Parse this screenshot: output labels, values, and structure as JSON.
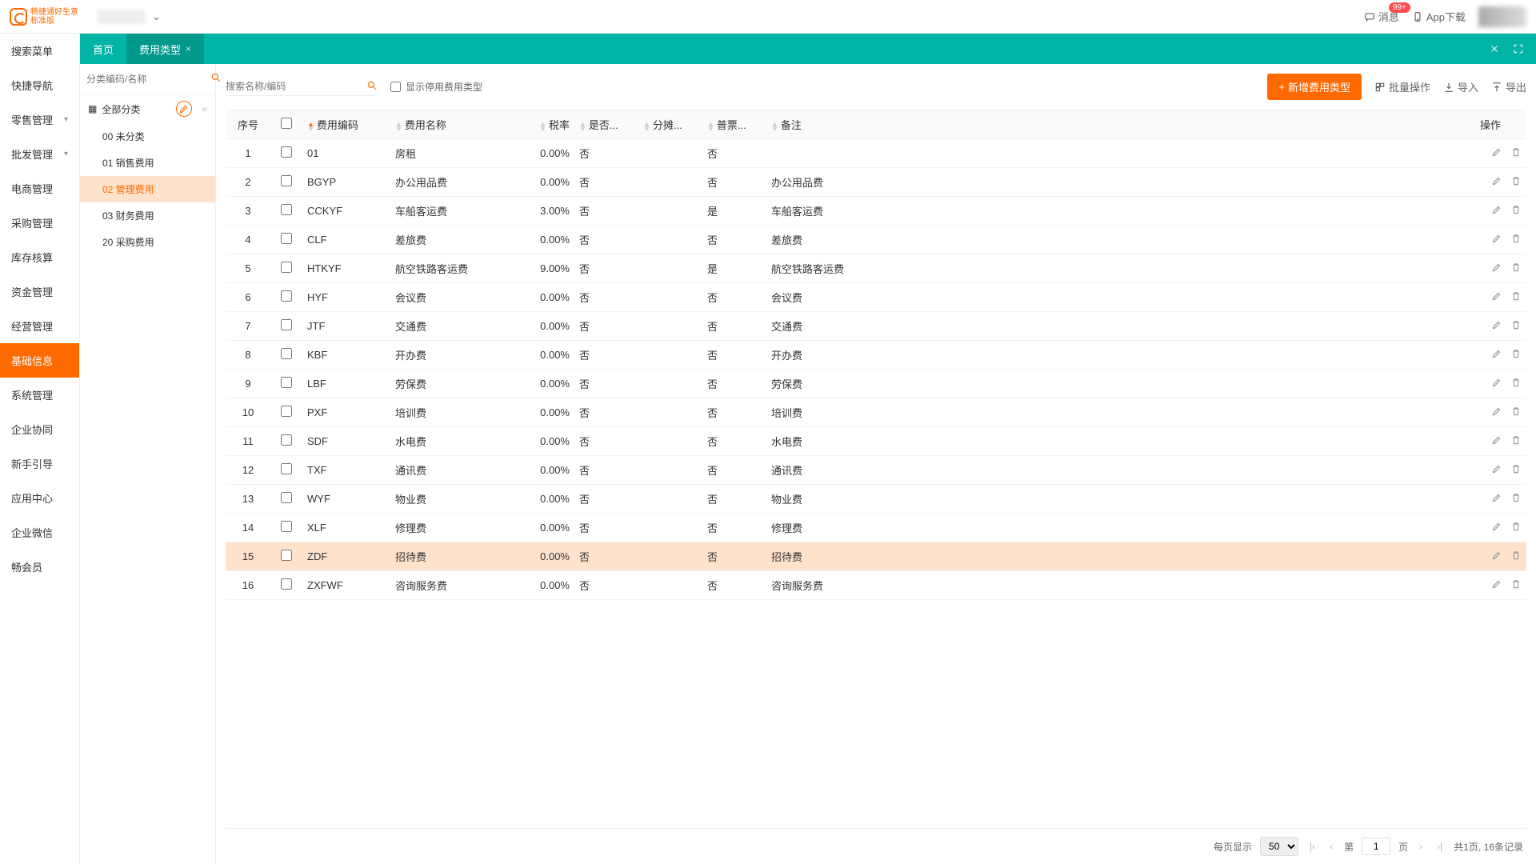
{
  "logo": {
    "line1": "畅捷通好生意",
    "line2": "标准版"
  },
  "topbar": {
    "message": "消息",
    "badge": "99+",
    "appDownload": "App下载"
  },
  "sidebar": {
    "items": [
      {
        "label": "搜索菜单",
        "expandable": false
      },
      {
        "label": "快捷导航",
        "expandable": false
      },
      {
        "label": "零售管理",
        "expandable": true
      },
      {
        "label": "批发管理",
        "expandable": true
      },
      {
        "label": "电商管理",
        "expandable": false
      },
      {
        "label": "采购管理",
        "expandable": false
      },
      {
        "label": "库存核算",
        "expandable": false
      },
      {
        "label": "资金管理",
        "expandable": false
      },
      {
        "label": "经营管理",
        "expandable": false
      },
      {
        "label": "基础信息",
        "expandable": false,
        "active": true
      },
      {
        "label": "系统管理",
        "expandable": false
      },
      {
        "label": "企业协同",
        "expandable": false
      },
      {
        "label": "新手引导",
        "expandable": false
      },
      {
        "label": "应用中心",
        "expandable": false
      },
      {
        "label": "企业微信",
        "expandable": false
      },
      {
        "label": "畅会员",
        "expandable": false
      }
    ]
  },
  "tabs": [
    {
      "label": "首页",
      "closable": false,
      "active": false
    },
    {
      "label": "费用类型",
      "closable": true,
      "active": true
    }
  ],
  "catSearch": {
    "placeholder": "分类编码/名称"
  },
  "catHeader": {
    "all": "全部分类"
  },
  "categories": [
    {
      "label": "00 未分类"
    },
    {
      "label": "01 销售费用"
    },
    {
      "label": "02 管理费用",
      "active": true
    },
    {
      "label": "03 财务费用"
    },
    {
      "label": "20 采购费用"
    }
  ],
  "mainSearch": {
    "placeholder": "搜索名称/编码"
  },
  "checkbox": {
    "label": "显示停用费用类型"
  },
  "buttons": {
    "add": "新增费用类型",
    "batch": "批量操作",
    "import": "导入",
    "export": "导出"
  },
  "columns": {
    "seq": "序号",
    "code": "费用编码",
    "name": "费用名称",
    "rate": "税率",
    "isX": "是否...",
    "allot": "分摊...",
    "ticket": "普票...",
    "remark": "备注",
    "op": "操作"
  },
  "rows": [
    {
      "seq": 1,
      "code": "01",
      "name": "房租",
      "rate": "0.00%",
      "isX": "否",
      "allot": "",
      "ticket": "否",
      "remark": ""
    },
    {
      "seq": 2,
      "code": "BGYP",
      "name": "办公用品费",
      "rate": "0.00%",
      "isX": "否",
      "allot": "",
      "ticket": "否",
      "remark": "办公用品费"
    },
    {
      "seq": 3,
      "code": "CCKYF",
      "name": "车船客运费",
      "rate": "3.00%",
      "isX": "否",
      "allot": "",
      "ticket": "是",
      "remark": "车船客运费"
    },
    {
      "seq": 4,
      "code": "CLF",
      "name": "差旅费",
      "rate": "0.00%",
      "isX": "否",
      "allot": "",
      "ticket": "否",
      "remark": "差旅费"
    },
    {
      "seq": 5,
      "code": "HTKYF",
      "name": "航空铁路客运费",
      "rate": "9.00%",
      "isX": "否",
      "allot": "",
      "ticket": "是",
      "remark": "航空铁路客运费"
    },
    {
      "seq": 6,
      "code": "HYF",
      "name": "会议费",
      "rate": "0.00%",
      "isX": "否",
      "allot": "",
      "ticket": "否",
      "remark": "会议费"
    },
    {
      "seq": 7,
      "code": "JTF",
      "name": "交通费",
      "rate": "0.00%",
      "isX": "否",
      "allot": "",
      "ticket": "否",
      "remark": "交通费"
    },
    {
      "seq": 8,
      "code": "KBF",
      "name": "开办费",
      "rate": "0.00%",
      "isX": "否",
      "allot": "",
      "ticket": "否",
      "remark": "开办费"
    },
    {
      "seq": 9,
      "code": "LBF",
      "name": "劳保费",
      "rate": "0.00%",
      "isX": "否",
      "allot": "",
      "ticket": "否",
      "remark": "劳保费"
    },
    {
      "seq": 10,
      "code": "PXF",
      "name": "培训费",
      "rate": "0.00%",
      "isX": "否",
      "allot": "",
      "ticket": "否",
      "remark": "培训费"
    },
    {
      "seq": 11,
      "code": "SDF",
      "name": "水电费",
      "rate": "0.00%",
      "isX": "否",
      "allot": "",
      "ticket": "否",
      "remark": "水电费"
    },
    {
      "seq": 12,
      "code": "TXF",
      "name": "通讯费",
      "rate": "0.00%",
      "isX": "否",
      "allot": "",
      "ticket": "否",
      "remark": "通讯费"
    },
    {
      "seq": 13,
      "code": "WYF",
      "name": "物业费",
      "rate": "0.00%",
      "isX": "否",
      "allot": "",
      "ticket": "否",
      "remark": "物业费"
    },
    {
      "seq": 14,
      "code": "XLF",
      "name": "修理费",
      "rate": "0.00%",
      "isX": "否",
      "allot": "",
      "ticket": "否",
      "remark": "修理费"
    },
    {
      "seq": 15,
      "code": "ZDF",
      "name": "招待费",
      "rate": "0.00%",
      "isX": "否",
      "allot": "",
      "ticket": "否",
      "remark": "招待费",
      "highlight": true
    },
    {
      "seq": 16,
      "code": "ZXFWF",
      "name": "咨询服务费",
      "rate": "0.00%",
      "isX": "否",
      "allot": "",
      "ticket": "否",
      "remark": "咨询服务费"
    }
  ],
  "pager": {
    "perPageLabel": "每页显示",
    "perPage": "50",
    "pageLabelPre": "第",
    "page": "1",
    "pageLabelPost": "页",
    "summary": "共1页, 16条记录"
  }
}
